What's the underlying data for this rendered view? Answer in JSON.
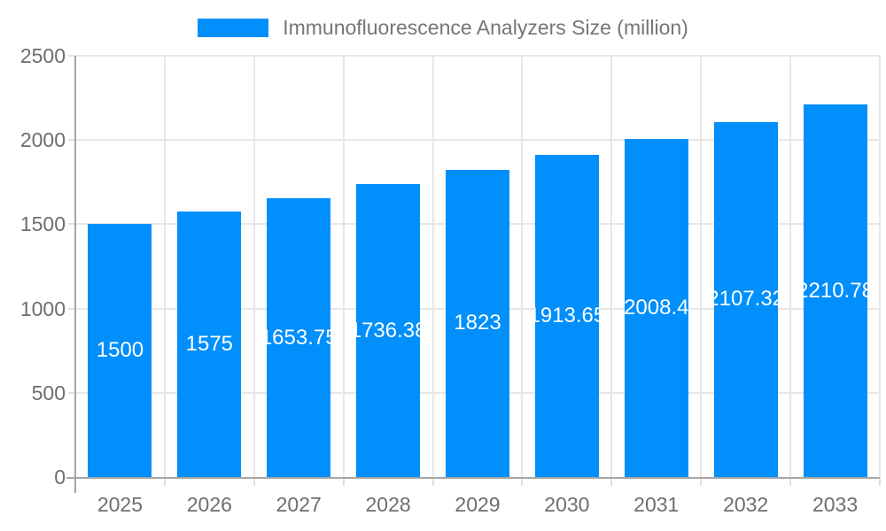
{
  "chart_data": {
    "type": "bar",
    "title": "Immunofluorescence Analyzers Size (million)",
    "legend": {
      "label": "Immunofluorescence Analyzers Size (million)",
      "position": "top"
    },
    "categories": [
      "2025",
      "2026",
      "2027",
      "2028",
      "2029",
      "2030",
      "2031",
      "2032",
      "2033"
    ],
    "series": [
      {
        "name": "Immunofluorescence Analyzers Size (million)",
        "values": [
          1500,
          1575,
          1653.75,
          1736.38,
          1823,
          1913.65,
          2008.4,
          2107.32,
          2210.78
        ]
      }
    ],
    "bar_labels": [
      "1500",
      "1575",
      "1653.75",
      "1736.38",
      "1823",
      "1913.65",
      "2008.4",
      "2107.32",
      "2210.78"
    ],
    "xlabel": "",
    "ylabel": "",
    "ylim": [
      0,
      2500
    ],
    "y_ticks": [
      0,
      500,
      1000,
      1500,
      2000,
      2500
    ],
    "grid": true,
    "colors": {
      "bar": "#008ffb",
      "bar_label_text": "#ffffff",
      "grid": "#e7e7e7",
      "tick": "#e0e0e0",
      "axis": "#a5a5a5",
      "tick_label_text": "#6e6e6e",
      "legend_text": "#757575"
    }
  }
}
